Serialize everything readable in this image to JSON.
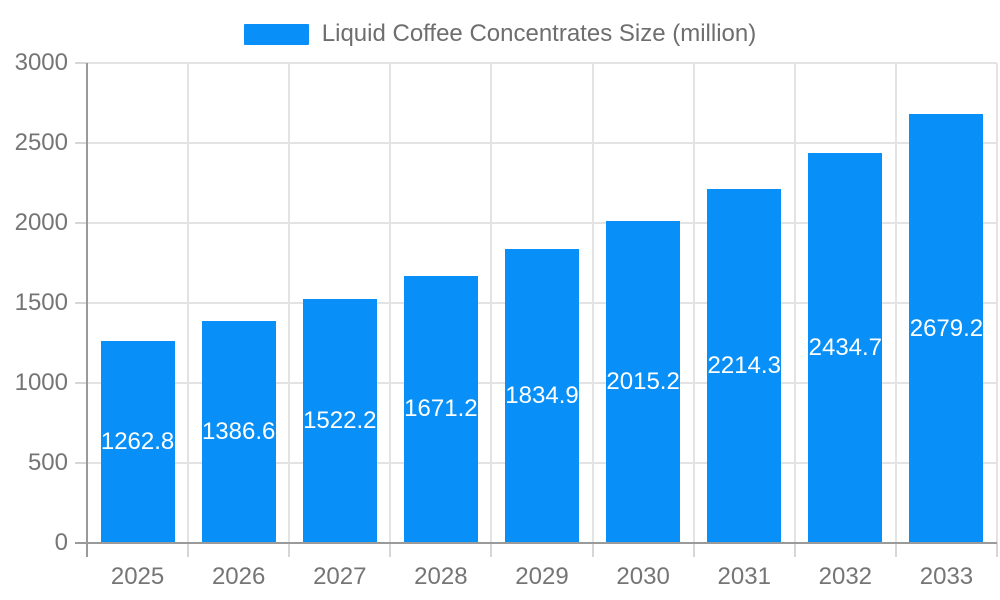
{
  "chart_data": {
    "type": "bar",
    "title": "Liquid Coffee Concentrates Size (million)",
    "categories": [
      "2025",
      "2026",
      "2027",
      "2028",
      "2029",
      "2030",
      "2031",
      "2032",
      "2033"
    ],
    "values": [
      1262.8,
      1386.6,
      1522.2,
      1671.2,
      1834.9,
      2015.2,
      2214.3,
      2434.7,
      2679.2
    ],
    "series_name": "Liquid Coffee Concentrates Size (million)",
    "xlabel": "",
    "ylabel": "",
    "ylim": [
      0,
      3000
    ],
    "yticks": [
      0,
      500,
      1000,
      1500,
      2000,
      2500,
      3000
    ],
    "grid": true,
    "legend_position": "top-center",
    "value_labels": "inside-center-white"
  },
  "colors": {
    "bar": "#0890f8",
    "value_label": "#ffffff",
    "axis_text": "#757575",
    "legend_text": "#6e6e6e",
    "grid": "#e3e3e3",
    "tick": "#d6d6d6",
    "axis_line": "#9a9a9a",
    "background": "#ffffff"
  }
}
